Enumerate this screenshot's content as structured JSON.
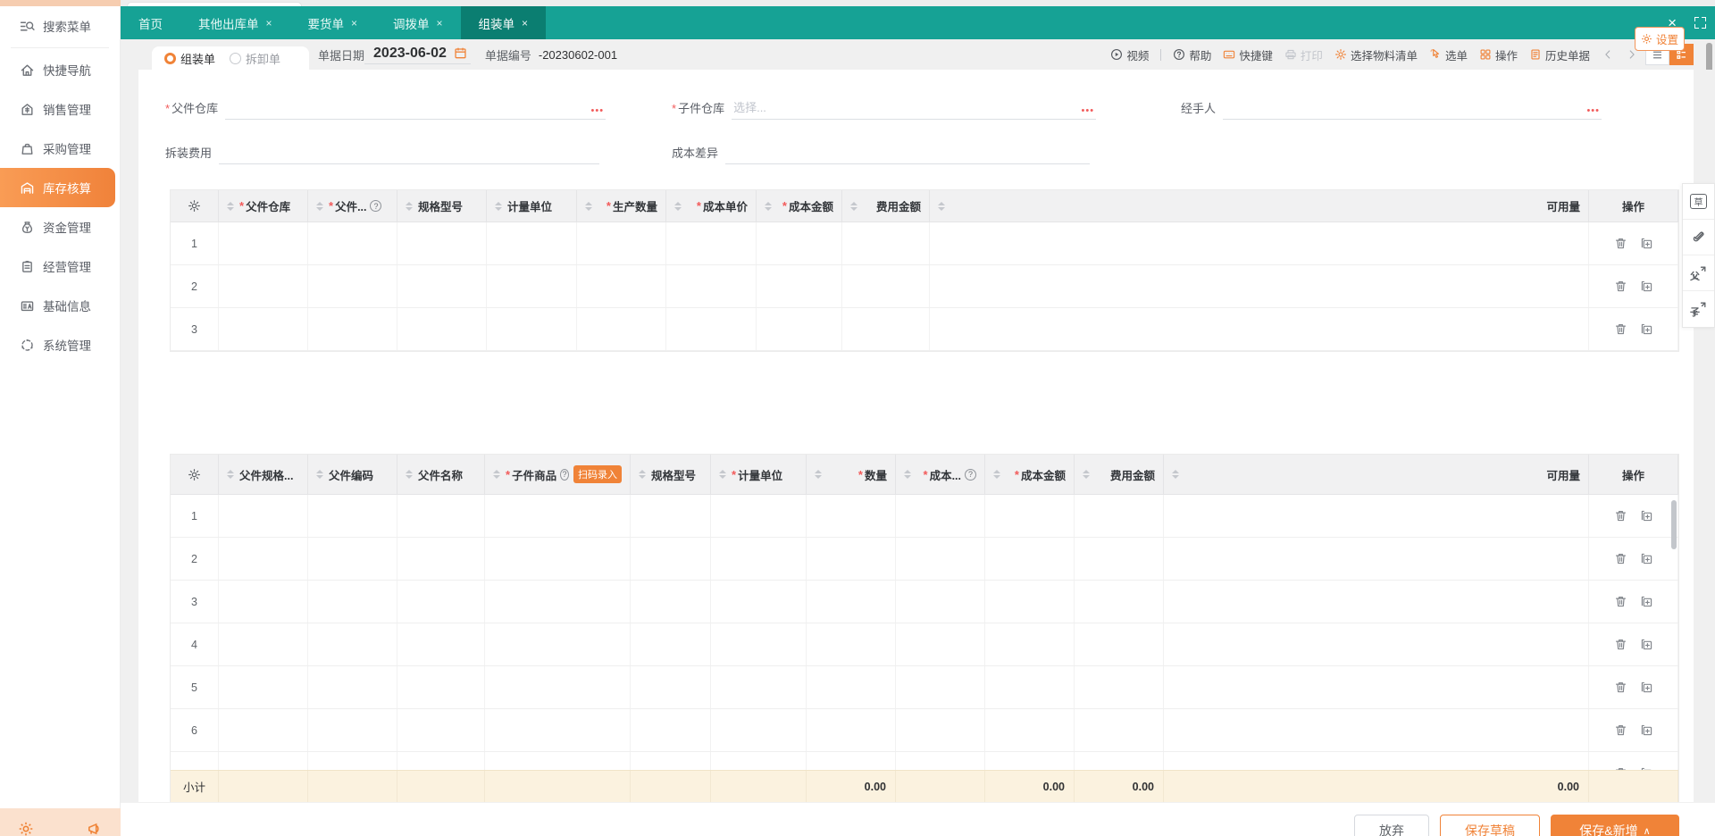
{
  "icons": {
    "more": "•••",
    "close": "×",
    "caret_up": "∧"
  },
  "colors": {
    "teal": "#16a295",
    "teal_active": "#0b7e71",
    "orange": "#f08338",
    "required_red": "#f25a5a",
    "subtotal_bg": "#fbf2df"
  },
  "sidebar": {
    "items": [
      {
        "id": "search-menu",
        "icon": "search-icon",
        "label": "搜索菜单"
      },
      {
        "id": "quick-nav",
        "icon": "home-icon",
        "label": "快捷导航"
      },
      {
        "id": "sales-mgmt",
        "icon": "sales-icon",
        "label": "销售管理"
      },
      {
        "id": "purchase-mgmt",
        "icon": "purchase-icon",
        "label": "采购管理"
      },
      {
        "id": "inventory-accounting",
        "icon": "inventory-icon",
        "label": "库存核算",
        "active": true
      },
      {
        "id": "funds-mgmt",
        "icon": "funds-icon",
        "label": "资金管理"
      },
      {
        "id": "business-mgmt",
        "icon": "business-icon",
        "label": "经营管理"
      },
      {
        "id": "base-info",
        "icon": "baseinfo-icon",
        "label": "基础信息"
      },
      {
        "id": "system-mgmt",
        "icon": "system-icon",
        "label": "系统管理"
      }
    ]
  },
  "tabbar": {
    "tabs": [
      {
        "id": "home",
        "label": "首页",
        "closable": false,
        "active": false
      },
      {
        "id": "other-outbound",
        "label": "其他出库单",
        "closable": true,
        "active": false
      },
      {
        "id": "request-order",
        "label": "要货单",
        "closable": true,
        "active": false
      },
      {
        "id": "transfer-order",
        "label": "调拨单",
        "closable": true,
        "active": false
      },
      {
        "id": "assembly-order",
        "label": "组装单",
        "closable": true,
        "active": true
      }
    ]
  },
  "toolbar": {
    "radios": [
      {
        "id": "assembly",
        "label": "组装单",
        "selected": true
      },
      {
        "id": "disassembly",
        "label": "拆卸单",
        "selected": false
      }
    ],
    "date_label": "单据日期",
    "date_value": "2023-06-02",
    "docno_label": "单据编号",
    "docno_value": "-20230602-001",
    "actions": [
      {
        "id": "video",
        "label": "视频",
        "icon": "video-icon"
      },
      {
        "id": "help",
        "label": "帮助",
        "icon": "help-icon"
      },
      {
        "id": "hotkeys",
        "label": "快捷键",
        "icon": "keyboard-icon",
        "orange": true
      },
      {
        "id": "print",
        "label": "打印",
        "icon": "print-icon",
        "disabled": true
      },
      {
        "id": "select-bom",
        "label": "选择物料清单",
        "icon": "bom-gear-icon",
        "orange": true
      },
      {
        "id": "select-order",
        "label": "选单",
        "icon": "pick-order-icon",
        "orange": true
      },
      {
        "id": "operations",
        "label": "操作",
        "icon": "grid-dots-icon",
        "orange": true
      },
      {
        "id": "history",
        "label": "历史单据",
        "icon": "history-doc-icon",
        "orange": true
      }
    ]
  },
  "form": {
    "fields": [
      {
        "id": "parent-warehouse",
        "label": "父件仓库",
        "required": true,
        "value": "",
        "more": true
      },
      {
        "id": "child-warehouse",
        "label": "子件仓库",
        "required": true,
        "value": "",
        "placeholder": "选择...",
        "more": true
      },
      {
        "id": "handler",
        "label": "经手人",
        "required": false,
        "value": "",
        "more": true
      },
      {
        "id": "assembly-fee",
        "label": "拆装费用",
        "required": false,
        "value": ""
      },
      {
        "id": "cost-variance",
        "label": "成本差异",
        "required": false,
        "value": ""
      }
    ],
    "settings_label": "设置"
  },
  "table1": {
    "columns": [
      {
        "id": "config",
        "type": "gear"
      },
      {
        "id": "parent-warehouse",
        "label": "父件仓库",
        "required": true,
        "sort": true
      },
      {
        "id": "parent-item",
        "label": "父件...",
        "required": true,
        "sort": true,
        "help": true
      },
      {
        "id": "spec-model",
        "label": "规格型号",
        "sort": true
      },
      {
        "id": "unit",
        "label": "计量单位",
        "sort": true
      },
      {
        "id": "production-qty",
        "label": "生产数量",
        "required": true,
        "sort": true
      },
      {
        "id": "cost-price",
        "label": "成本单价",
        "required": true,
        "sort": true
      },
      {
        "id": "cost-amount",
        "label": "成本金额",
        "required": true,
        "sort": true
      },
      {
        "id": "fee-amount",
        "label": "费用金额",
        "sort": true
      },
      {
        "id": "filler",
        "label": "",
        "sort": true
      },
      {
        "id": "available-qty",
        "label": "可用量"
      },
      {
        "id": "operation",
        "label": "操作"
      }
    ],
    "rows": [
      "1",
      "2",
      "3"
    ]
  },
  "table2": {
    "columns": [
      {
        "id": "config",
        "type": "gear"
      },
      {
        "id": "parent-spec",
        "label": "父件规格...",
        "sort": true
      },
      {
        "id": "parent-code",
        "label": "父件编码",
        "sort": true
      },
      {
        "id": "parent-name",
        "label": "父件名称",
        "sort": true
      },
      {
        "id": "child-item",
        "label": "子件商品",
        "required": true,
        "sort": true,
        "help": true,
        "badge": "扫码录入"
      },
      {
        "id": "spec-model",
        "label": "规格型号",
        "sort": true
      },
      {
        "id": "unit",
        "label": "计量单位",
        "required": true,
        "sort": true
      },
      {
        "id": "qty",
        "label": "数量",
        "required": true,
        "sort": true
      },
      {
        "id": "cost-price",
        "label": "成本...",
        "required": true,
        "sort": true,
        "help": true
      },
      {
        "id": "cost-amount",
        "label": "成本金额",
        "required": true,
        "sort": true
      },
      {
        "id": "fee-amount",
        "label": "费用金额",
        "sort": true
      },
      {
        "id": "filler",
        "label": "",
        "sort": true
      },
      {
        "id": "available-qty",
        "label": "可用量"
      },
      {
        "id": "operation",
        "label": "操作"
      }
    ],
    "rows": [
      "1",
      "2",
      "3",
      "4",
      "5",
      "6"
    ],
    "subtotal": {
      "label": "小计",
      "cells": {
        "7": "0.00",
        "9": "0.00",
        "10": "0.00",
        "12": "0.00"
      }
    }
  },
  "side_tools": [
    {
      "id": "draft",
      "label": "草"
    },
    {
      "id": "attachment",
      "label": ""
    },
    {
      "id": "parent-expand",
      "label": "父"
    },
    {
      "id": "child-expand",
      "label": "子"
    }
  ],
  "footer": {
    "buttons": [
      {
        "id": "discard",
        "label": "放弃"
      },
      {
        "id": "save-draft",
        "label": "保存草稿"
      },
      {
        "id": "save-and-new",
        "label": "保存&新增"
      }
    ]
  }
}
